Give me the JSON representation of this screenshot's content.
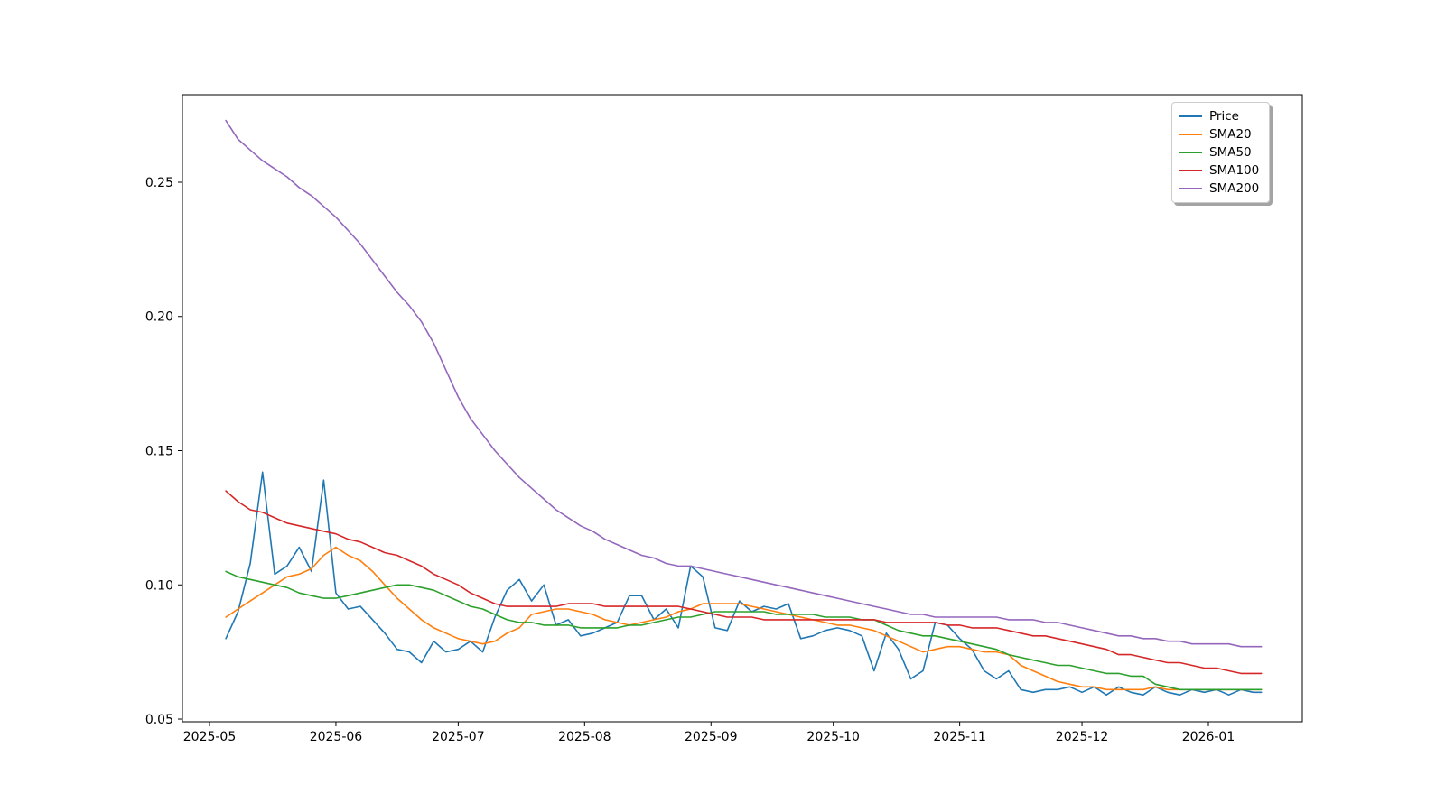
{
  "figure": {
    "background": "#ffffff",
    "title": ""
  },
  "axes": {
    "spine_color": "#000000",
    "tick_label_color": "#000000",
    "x_tick_labels": [
      "2025-05",
      "2025-06",
      "2025-07",
      "2025-08",
      "2025-09",
      "2025-10",
      "2025-11",
      "2025-12",
      "2026-01"
    ],
    "y_tick_labels": [
      "0.05",
      "0.10",
      "0.15",
      "0.20",
      "0.25"
    ]
  },
  "legend": {
    "position": "upper right",
    "labels": [
      "Price",
      "SMA20",
      "SMA50",
      "SMA100",
      "SMA200"
    ]
  },
  "chart_data": {
    "type": "line",
    "title": "",
    "xlabel": "",
    "ylabel": "",
    "grid": false,
    "legend_position": "upper right",
    "ylim": [
      0.049,
      0.2826
    ],
    "xlim": [
      "2025-04-24",
      "2026-01-24"
    ],
    "yticks": [
      0.05,
      0.1,
      0.15,
      0.2,
      0.25
    ],
    "xticks": [
      "2025-05-01",
      "2025-06-01",
      "2025-07-01",
      "2025-08-01",
      "2025-09-01",
      "2025-10-01",
      "2025-11-01",
      "2025-12-01",
      "2026-01-01"
    ],
    "x": [
      "2025-05-05",
      "2025-05-08",
      "2025-05-11",
      "2025-05-14",
      "2025-05-17",
      "2025-05-20",
      "2025-05-23",
      "2025-05-26",
      "2025-05-29",
      "2025-06-01",
      "2025-06-04",
      "2025-06-07",
      "2025-06-10",
      "2025-06-13",
      "2025-06-16",
      "2025-06-19",
      "2025-06-22",
      "2025-06-25",
      "2025-06-28",
      "2025-07-01",
      "2025-07-04",
      "2025-07-07",
      "2025-07-10",
      "2025-07-13",
      "2025-07-16",
      "2025-07-19",
      "2025-07-22",
      "2025-07-25",
      "2025-07-28",
      "2025-07-31",
      "2025-08-03",
      "2025-08-06",
      "2025-08-09",
      "2025-08-12",
      "2025-08-15",
      "2025-08-18",
      "2025-08-21",
      "2025-08-24",
      "2025-08-27",
      "2025-08-30",
      "2025-09-02",
      "2025-09-05",
      "2025-09-08",
      "2025-09-11",
      "2025-09-14",
      "2025-09-17",
      "2025-09-20",
      "2025-09-23",
      "2025-09-26",
      "2025-09-29",
      "2025-10-02",
      "2025-10-05",
      "2025-10-08",
      "2025-10-11",
      "2025-10-14",
      "2025-10-17",
      "2025-10-20",
      "2025-10-23",
      "2025-10-26",
      "2025-10-29",
      "2025-11-01",
      "2025-11-04",
      "2025-11-07",
      "2025-11-10",
      "2025-11-13",
      "2025-11-16",
      "2025-11-19",
      "2025-11-22",
      "2025-11-25",
      "2025-11-28",
      "2025-12-01",
      "2025-12-04",
      "2025-12-07",
      "2025-12-10",
      "2025-12-13",
      "2025-12-16",
      "2025-12-19",
      "2025-12-22",
      "2025-12-25",
      "2025-12-28",
      "2025-12-31",
      "2026-01-03",
      "2026-01-06",
      "2026-01-09",
      "2026-01-12",
      "2026-01-14"
    ],
    "series": [
      {
        "name": "Price",
        "color": "#1f77b4",
        "values": [
          0.08,
          0.09,
          0.108,
          0.142,
          0.104,
          0.107,
          0.114,
          0.105,
          0.139,
          0.097,
          0.091,
          0.092,
          0.087,
          0.082,
          0.076,
          0.075,
          0.071,
          0.079,
          0.075,
          0.076,
          0.079,
          0.075,
          0.088,
          0.098,
          0.102,
          0.094,
          0.1,
          0.085,
          0.087,
          0.081,
          0.082,
          0.084,
          0.086,
          0.096,
          0.096,
          0.087,
          0.091,
          0.084,
          0.107,
          0.103,
          0.084,
          0.083,
          0.094,
          0.09,
          0.092,
          0.091,
          0.093,
          0.08,
          0.081,
          0.083,
          0.084,
          0.083,
          0.081,
          0.068,
          0.082,
          0.076,
          0.065,
          0.068,
          0.086,
          0.085,
          0.08,
          0.076,
          0.068,
          0.065,
          0.068,
          0.061,
          0.06,
          0.061,
          0.061,
          0.062,
          0.06,
          0.062,
          0.059,
          0.062,
          0.06,
          0.059,
          0.062,
          0.06,
          0.059,
          0.061,
          0.06,
          0.061,
          0.059,
          0.061,
          0.06,
          0.06
        ]
      },
      {
        "name": "SMA20",
        "color": "#ff7f0e",
        "values": [
          0.088,
          0.091,
          0.094,
          0.097,
          0.1,
          0.103,
          0.104,
          0.106,
          0.111,
          0.114,
          0.111,
          0.109,
          0.105,
          0.1,
          0.095,
          0.091,
          0.087,
          0.084,
          0.082,
          0.08,
          0.079,
          0.078,
          0.079,
          0.082,
          0.084,
          0.089,
          0.09,
          0.091,
          0.091,
          0.09,
          0.089,
          0.087,
          0.086,
          0.085,
          0.086,
          0.087,
          0.088,
          0.09,
          0.091,
          0.093,
          0.093,
          0.093,
          0.093,
          0.092,
          0.091,
          0.09,
          0.089,
          0.088,
          0.087,
          0.086,
          0.085,
          0.085,
          0.084,
          0.083,
          0.081,
          0.079,
          0.077,
          0.075,
          0.076,
          0.077,
          0.077,
          0.076,
          0.075,
          0.075,
          0.074,
          0.07,
          0.068,
          0.066,
          0.064,
          0.063,
          0.062,
          0.062,
          0.061,
          0.061,
          0.061,
          0.061,
          0.062,
          0.061,
          0.061,
          0.061,
          0.061,
          0.061,
          0.061,
          0.061,
          0.061,
          0.061
        ]
      },
      {
        "name": "SMA50",
        "color": "#2ca02c",
        "values": [
          0.105,
          0.103,
          0.102,
          0.101,
          0.1,
          0.099,
          0.097,
          0.096,
          0.095,
          0.095,
          0.096,
          0.097,
          0.098,
          0.099,
          0.1,
          0.1,
          0.099,
          0.098,
          0.096,
          0.094,
          0.092,
          0.091,
          0.089,
          0.087,
          0.086,
          0.086,
          0.085,
          0.085,
          0.085,
          0.084,
          0.084,
          0.084,
          0.084,
          0.085,
          0.085,
          0.086,
          0.087,
          0.088,
          0.088,
          0.089,
          0.09,
          0.09,
          0.09,
          0.09,
          0.09,
          0.089,
          0.089,
          0.089,
          0.089,
          0.088,
          0.088,
          0.088,
          0.087,
          0.087,
          0.085,
          0.083,
          0.082,
          0.081,
          0.081,
          0.08,
          0.079,
          0.078,
          0.077,
          0.076,
          0.074,
          0.073,
          0.072,
          0.071,
          0.07,
          0.07,
          0.069,
          0.068,
          0.067,
          0.067,
          0.066,
          0.066,
          0.063,
          0.062,
          0.061,
          0.061,
          0.061,
          0.061,
          0.061,
          0.061,
          0.061,
          0.061
        ]
      },
      {
        "name": "SMA100",
        "color": "#d62728",
        "values": [
          0.135,
          0.131,
          0.128,
          0.127,
          0.125,
          0.123,
          0.122,
          0.121,
          0.12,
          0.119,
          0.117,
          0.116,
          0.114,
          0.112,
          0.111,
          0.109,
          0.107,
          0.104,
          0.102,
          0.1,
          0.097,
          0.095,
          0.093,
          0.092,
          0.092,
          0.092,
          0.092,
          0.092,
          0.093,
          0.093,
          0.093,
          0.092,
          0.092,
          0.092,
          0.092,
          0.092,
          0.092,
          0.092,
          0.091,
          0.09,
          0.089,
          0.088,
          0.088,
          0.088,
          0.087,
          0.087,
          0.087,
          0.087,
          0.087,
          0.087,
          0.087,
          0.087,
          0.087,
          0.087,
          0.086,
          0.086,
          0.086,
          0.086,
          0.086,
          0.085,
          0.085,
          0.084,
          0.084,
          0.084,
          0.083,
          0.082,
          0.081,
          0.081,
          0.08,
          0.079,
          0.078,
          0.077,
          0.076,
          0.074,
          0.074,
          0.073,
          0.072,
          0.071,
          0.071,
          0.07,
          0.069,
          0.069,
          0.068,
          0.067,
          0.067,
          0.067
        ]
      },
      {
        "name": "SMA200",
        "color": "#9467bd",
        "values": [
          0.273,
          0.266,
          0.262,
          0.258,
          0.255,
          0.252,
          0.248,
          0.245,
          0.241,
          0.237,
          0.232,
          0.227,
          0.221,
          0.215,
          0.209,
          0.204,
          0.198,
          0.19,
          0.18,
          0.17,
          0.162,
          0.156,
          0.15,
          0.145,
          0.14,
          0.136,
          0.132,
          0.128,
          0.125,
          0.122,
          0.12,
          0.117,
          0.115,
          0.113,
          0.111,
          0.11,
          0.108,
          0.107,
          0.107,
          0.106,
          0.105,
          0.104,
          0.103,
          0.102,
          0.101,
          0.1,
          0.099,
          0.098,
          0.097,
          0.096,
          0.095,
          0.094,
          0.093,
          0.092,
          0.091,
          0.09,
          0.089,
          0.089,
          0.088,
          0.088,
          0.088,
          0.088,
          0.088,
          0.088,
          0.087,
          0.087,
          0.087,
          0.086,
          0.086,
          0.085,
          0.084,
          0.083,
          0.082,
          0.081,
          0.081,
          0.08,
          0.08,
          0.079,
          0.079,
          0.078,
          0.078,
          0.078,
          0.078,
          0.077,
          0.077,
          0.077
        ]
      }
    ]
  }
}
